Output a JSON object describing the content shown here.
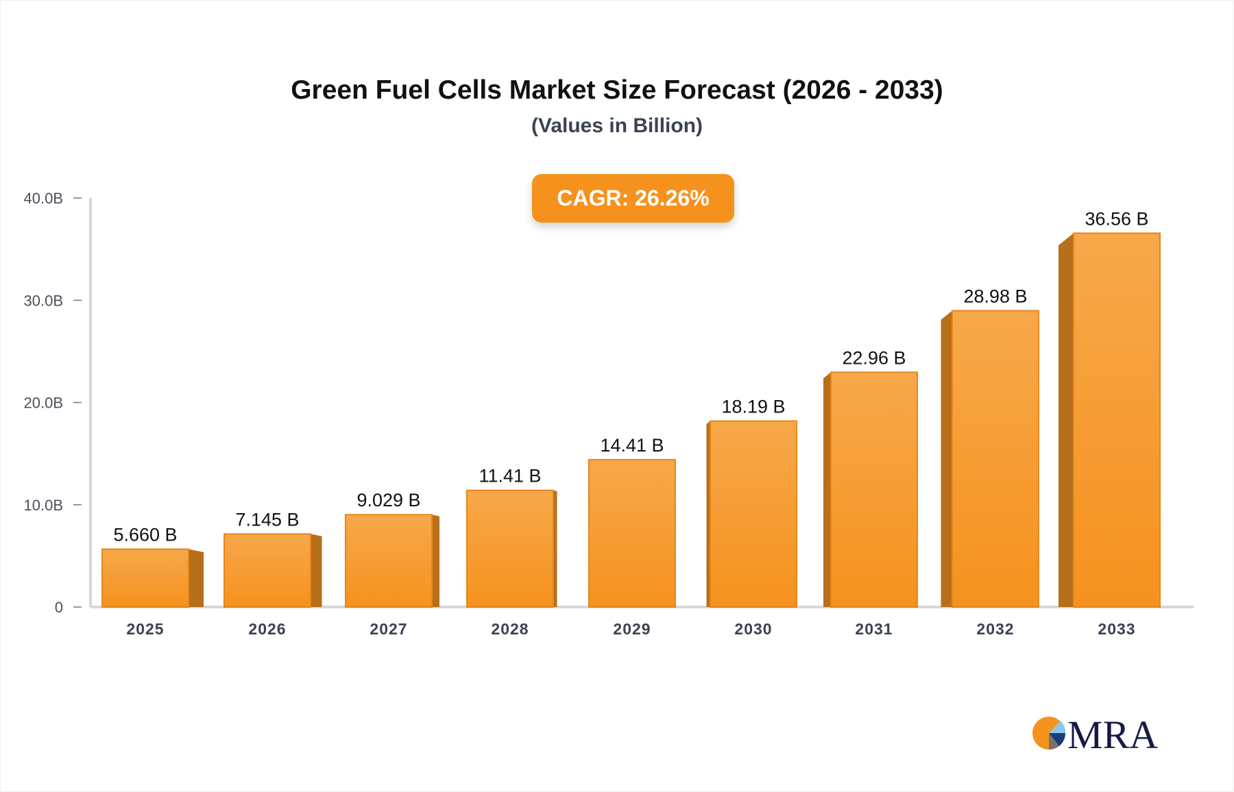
{
  "chart_data": {
    "type": "bar",
    "title": "Green Fuel Cells Market Size Forecast (2026 - 2033)",
    "subtitle": "(Values in Billion)",
    "annotation": "CAGR: 26.26%",
    "categories": [
      "2025",
      "2026",
      "2027",
      "2028",
      "2029",
      "2030",
      "2031",
      "2032",
      "2033"
    ],
    "values": [
      5.66,
      7.145,
      9.029,
      11.41,
      14.41,
      18.19,
      22.96,
      28.98,
      36.56
    ],
    "data_labels": [
      "5.660 B",
      "7.145 B",
      "9.029 B",
      "11.41 B",
      "14.41 B",
      "18.19 B",
      "22.96 B",
      "28.98 B",
      "36.56 B"
    ],
    "yticks": [
      0,
      10,
      20,
      30,
      40
    ],
    "ytick_labels": [
      "0",
      "10.0B",
      "20.0B",
      "30.0B",
      "40.0B"
    ],
    "ylim": [
      0,
      40
    ],
    "xlabel": "",
    "ylabel": "",
    "grid": false,
    "colors": {
      "bar_front": "#F5921E",
      "bar_top": "#F7A84A",
      "bar_side": "#B86F1A",
      "axis": "#d5d7dd"
    }
  },
  "logo": {
    "text": "MRA"
  }
}
